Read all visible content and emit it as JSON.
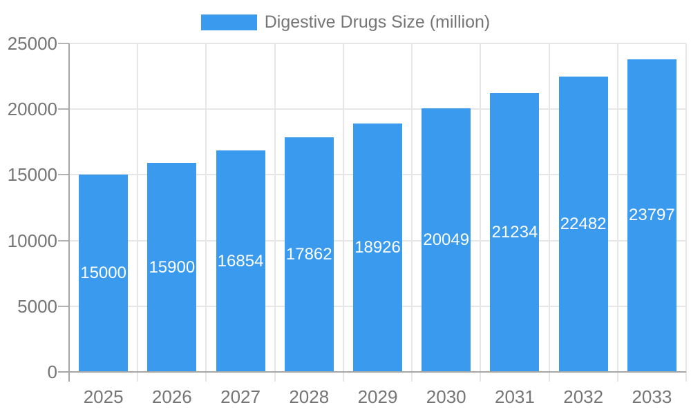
{
  "chart_data": {
    "type": "bar",
    "title": "",
    "series_name": "Digestive Drugs Size (million)",
    "categories": [
      "2025",
      "2026",
      "2027",
      "2028",
      "2029",
      "2030",
      "2031",
      "2032",
      "2033"
    ],
    "series": [
      {
        "name": "Digestive Drugs Size (million)",
        "values": [
          15000,
          15900,
          16854,
          17862,
          18926,
          20049,
          21234,
          22482,
          23797
        ]
      }
    ],
    "value_labels": [
      "15000",
      "15900",
      "16854",
      "17862",
      "18926",
      "20049",
      "21234",
      "22482",
      "23797"
    ],
    "xlabel": "",
    "ylabel": "",
    "ylim": [
      0,
      25000
    ],
    "ytick_interval": 5000,
    "ytick_labels": [
      "0",
      "5000",
      "10000",
      "15000",
      "20000",
      "25000"
    ],
    "grid": true,
    "legend_position": "top-center",
    "colors": {
      "bar": "#399aee",
      "bar_label_text": "#ffffff",
      "axis_text": "#757575",
      "legend_text": "#757575",
      "gridline": "#e6e6e6",
      "axis_line": "#a6a6a6",
      "tick": "#b3b3b3",
      "background": "#ffffff"
    }
  }
}
